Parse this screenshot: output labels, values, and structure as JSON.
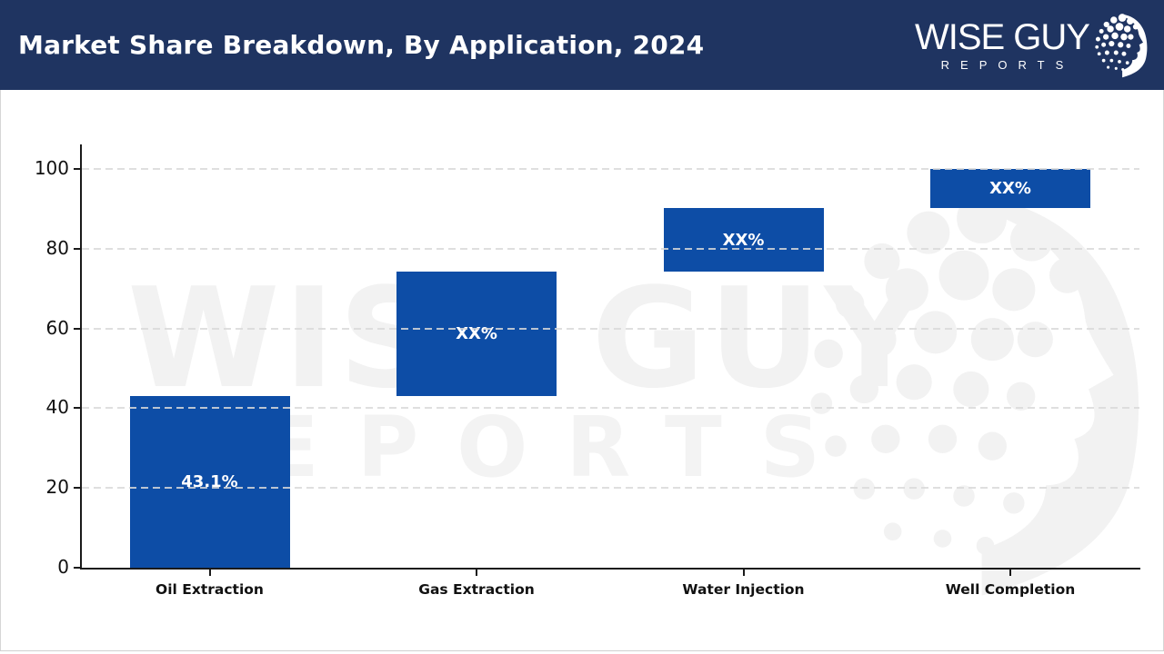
{
  "header": {
    "title": "Market Share Breakdown, By Application, 2024",
    "logo": {
      "brand_line1": "WISE GUY",
      "brand_line2": "REPORTS"
    }
  },
  "watermark": {
    "line1": "WISE GUY",
    "line2": "REPORTS"
  },
  "colors": {
    "header_bg": "#1f3461",
    "bar_fill": "#0d4da6",
    "bar_label": "#ffffff",
    "axis": "#1a1a1a",
    "gridline": "#d9d9d9",
    "watermark": "#f2f2f2"
  },
  "chart_data": {
    "type": "bar",
    "subtype": "waterfall",
    "title": "Market Share Breakdown, By Application, 2024",
    "xlabel": "",
    "ylabel": "",
    "ylim": [
      0,
      100
    ],
    "yticks": [
      0,
      20,
      40,
      60,
      80,
      100
    ],
    "grid": "horizontal-dashed",
    "legend": "none",
    "categories": [
      "Oil Extraction",
      "Gas Extraction",
      "Water Injection",
      "Well Completion"
    ],
    "series": [
      {
        "name": "Market Share",
        "segments": [
          {
            "category": "Oil Extraction",
            "start": 0,
            "end": 43.1,
            "label": "43.1%"
          },
          {
            "category": "Gas Extraction",
            "start": 43.1,
            "end": 74.3,
            "label": "XX%"
          },
          {
            "category": "Water Injection",
            "start": 74.3,
            "end": 90.1,
            "label": "XX%"
          },
          {
            "category": "Well Completion",
            "start": 90.1,
            "end": 100,
            "label": "XX%"
          }
        ]
      }
    ]
  }
}
